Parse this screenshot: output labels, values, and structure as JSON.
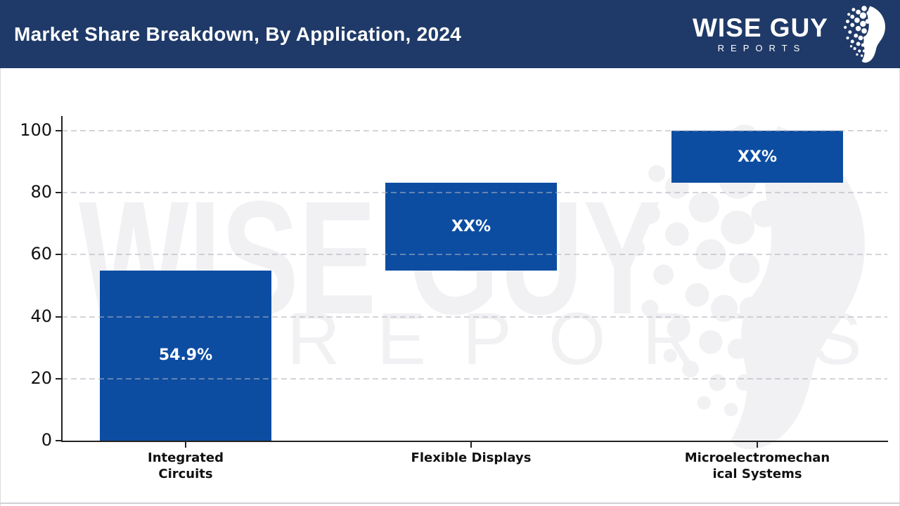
{
  "header": {
    "title": "Market Share Breakdown, By Application, 2024",
    "logo": {
      "name_top": "WISE GUY",
      "name_bottom": "REPORTS"
    }
  },
  "watermark": {
    "line1": "WISE GUY",
    "line2": "REPORTS"
  },
  "chart_data": {
    "type": "bar",
    "subtype": "waterfall",
    "title": "Market Share Breakdown, By Application, 2024",
    "categories": [
      "Integrated\nCircuits",
      "Flexible Displays",
      "Microelectromechan\nical Systems"
    ],
    "segments": [
      {
        "category": "Integrated Circuits",
        "start": 0,
        "end": 54.9,
        "label": "54.9%"
      },
      {
        "category": "Flexible Displays",
        "start": 54.9,
        "end": 83.2,
        "label": "XX%"
      },
      {
        "category": "Microelectromechanical Systems",
        "start": 83.2,
        "end": 100,
        "label": "XX%"
      }
    ],
    "yticks": [
      0,
      20,
      40,
      60,
      80,
      100
    ],
    "ylim": [
      0,
      100
    ],
    "xlabel": "",
    "ylabel": "",
    "grid": "horizontal-dashed-over-bars",
    "legend": "none"
  },
  "colors": {
    "header_bg": "#1f3a68",
    "bar": "#0c4da2",
    "axis": "#222222",
    "grid": "#d6dae0",
    "bar_label_text": "#ffffff",
    "watermark": "#f1f1f3"
  }
}
